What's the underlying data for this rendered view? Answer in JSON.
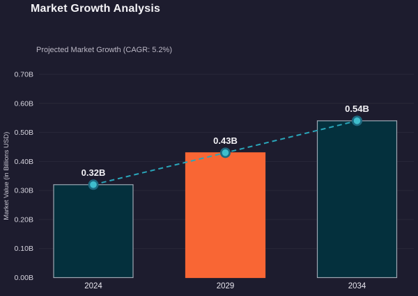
{
  "page": {
    "background": "#1d1c2e",
    "title_color": "#f4f3f7",
    "subtitle_color": "#bcb9c6"
  },
  "header": {
    "title": "Market Growth Analysis",
    "subtitle": "Projected Market Growth (CAGR: 5.2%)"
  },
  "chart_data": {
    "type": "bar",
    "overlay": "line",
    "title": "Market Growth Analysis",
    "subtitle": "Projected Market Growth (CAGR: 5.2%)",
    "categories": [
      "2024",
      "2029",
      "2034"
    ],
    "values": [
      0.32,
      0.43,
      0.54
    ],
    "value_labels": [
      "0.32B",
      "0.43B",
      "0.54B"
    ],
    "xlabel": "",
    "ylabel": "Market Value (in Billions USD)",
    "ylim": [
      0,
      0.7
    ],
    "yticks": [
      {
        "label": "0.00B",
        "value": 0.0
      },
      {
        "label": "0.10B",
        "value": 0.1
      },
      {
        "label": "0.20B",
        "value": 0.2
      },
      {
        "label": "0.30B",
        "value": 0.3
      },
      {
        "label": "0.40B",
        "value": 0.4
      },
      {
        "label": "0.50B",
        "value": 0.5
      },
      {
        "label": "0.60B",
        "value": 0.6
      },
      {
        "label": "0.70B",
        "value": 0.7
      }
    ],
    "grid": true,
    "legend": "none",
    "colors": {
      "bar_fills": [
        "#04303d",
        "#f96634",
        "#04303d"
      ],
      "bar_strokes": [
        "#9fa8b4",
        "#f96634",
        "#9fa8b4"
      ],
      "trend_line": "#2aa6ba",
      "marker_core": "#3fbecd",
      "marker_ring": "#1d6a81",
      "gridline": "rgba(255,255,255,0.055)",
      "tick_label": "#d8d6e0",
      "axis_label": "#c9c7d2",
      "x_label": "#e8e6ee",
      "value_label": "#f3f2f6"
    }
  }
}
